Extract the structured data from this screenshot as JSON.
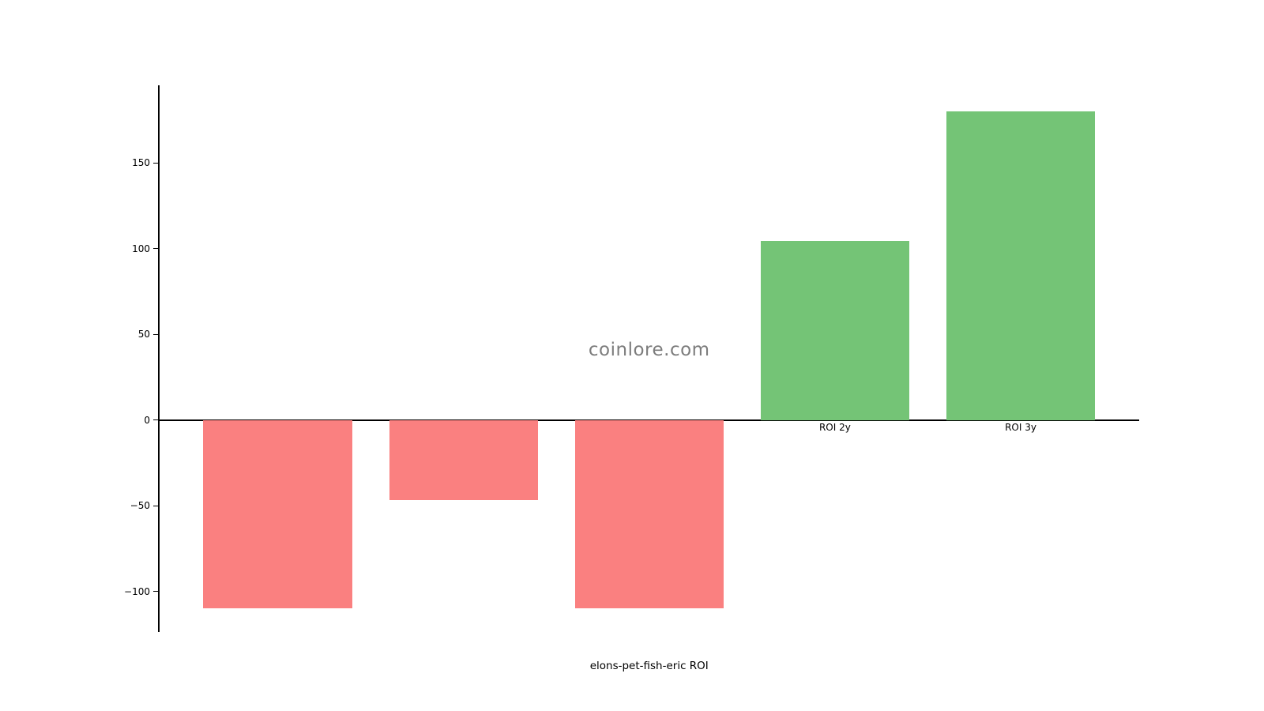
{
  "page": {
    "background": "#ffffff"
  },
  "watermark": {
    "text": "coinlore.com",
    "color": "#7d7d7d"
  },
  "chart_data": {
    "type": "bar",
    "title": "elons-pet-fish-eric ROI",
    "title_position": "bottom",
    "categories": [
      "",
      "",
      "",
      "ROI 2y",
      "ROI 3y"
    ],
    "values": [
      -110,
      -46.5,
      -110,
      104.6,
      180
    ],
    "colors": {
      "positive": "#74c476",
      "negative": "#fa8080"
    },
    "axis_color": "#000000",
    "tick_label_color": "#000000",
    "yticks": [
      150,
      100,
      50,
      0,
      -50,
      -100
    ],
    "ylim": [
      -123.6,
      195.4
    ],
    "xlim": [
      -0.64,
      4.64
    ],
    "bar_width": 0.8,
    "grid": false,
    "legend": false,
    "background": "#ffffff"
  }
}
